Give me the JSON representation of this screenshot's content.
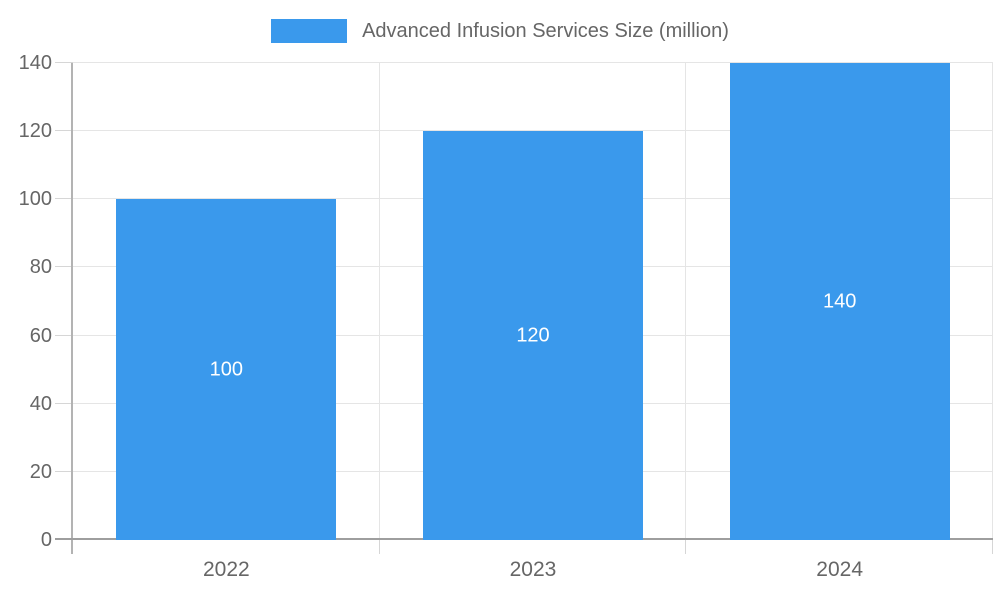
{
  "legend": {
    "label": "Advanced Infusion Services Size (million)"
  },
  "colors": {
    "bar": "#3a99ec",
    "grid": "#e5e5e5",
    "axis_x": "#9e9e9e",
    "axis_y": "#b3b3b3",
    "tick": "#d6d6d6",
    "tick_label": "#666666",
    "bar_label": "#ffffff",
    "background": "#ffffff"
  },
  "chart_data": {
    "type": "bar",
    "title": "",
    "series_name": "Advanced Infusion Services Size (million)",
    "categories": [
      "2022",
      "2023",
      "2024"
    ],
    "values": [
      100,
      120,
      140
    ],
    "data_labels": [
      "100",
      "120",
      "140"
    ],
    "xlabel": "",
    "ylabel": "",
    "ylim": [
      0,
      140
    ],
    "yticks": [
      0,
      20,
      40,
      60,
      80,
      100,
      120,
      140
    ],
    "grid": true,
    "legend_position": "top"
  }
}
